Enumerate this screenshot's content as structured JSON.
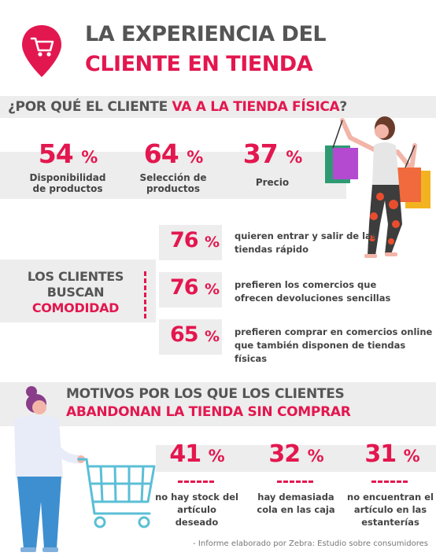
{
  "header": {
    "title_line1": "LA EXPERIENCIA DEL",
    "title_line2": "CLIENTE EN TIENDA",
    "icon": "shopping-cart-pin-icon"
  },
  "section1": {
    "question_prefix": "¿POR QUÉ EL CLIENTE ",
    "question_highlight": "VA A LA TIENDA FÍSICA",
    "question_suffix": "?",
    "stats": [
      {
        "value": "54",
        "unit": "%",
        "label_line1": "Disponibilidad",
        "label_line2": "de productos"
      },
      {
        "value": "64",
        "unit": "%",
        "label_line1": "Selección de",
        "label_line2": "productos"
      },
      {
        "value": "37",
        "unit": "%",
        "label_line1": "Precio",
        "label_line2": ""
      }
    ]
  },
  "section2": {
    "heading_line1": "LOS CLIENTES",
    "heading_line2": "BUSCAN",
    "heading_line3": "COMODIDAD",
    "items": [
      {
        "value": "76",
        "unit": "%",
        "text_line1": "quieren entrar y salir de las",
        "text_line2": "tiendas rápido"
      },
      {
        "value": "76",
        "unit": "%",
        "text_line1": "prefieren los comercios que",
        "text_line2": "ofrecen devoluciones sencillas"
      },
      {
        "value": "65",
        "unit": "%",
        "text_line1": "prefieren comprar en comercios online",
        "text_line2": "que también disponen de tiendas físicas"
      }
    ]
  },
  "section3": {
    "heading_line1": "MOTIVOS POR LOS QUE LOS CLIENTES",
    "heading_line2": "ABANDONAN LA TIENDA SIN COMPRAR",
    "stats": [
      {
        "value": "41",
        "unit": "%",
        "text_line1": "no hay stock del",
        "text_line2": "artículo deseado",
        "text_line3": ""
      },
      {
        "value": "32",
        "unit": "%",
        "text_line1": "hay demasiada",
        "text_line2": "cola en las caja",
        "text_line3": ""
      },
      {
        "value": "31",
        "unit": "%",
        "text_line1": "no encuentran el",
        "text_line2": "artículo en las",
        "text_line3": "estanterías"
      }
    ]
  },
  "footer": {
    "source": "- Informe elaborado por Zebra: Estudio sobre consumidores"
  },
  "colors": {
    "accent": "#e3174f",
    "band": "#ededed",
    "text": "#555555"
  }
}
